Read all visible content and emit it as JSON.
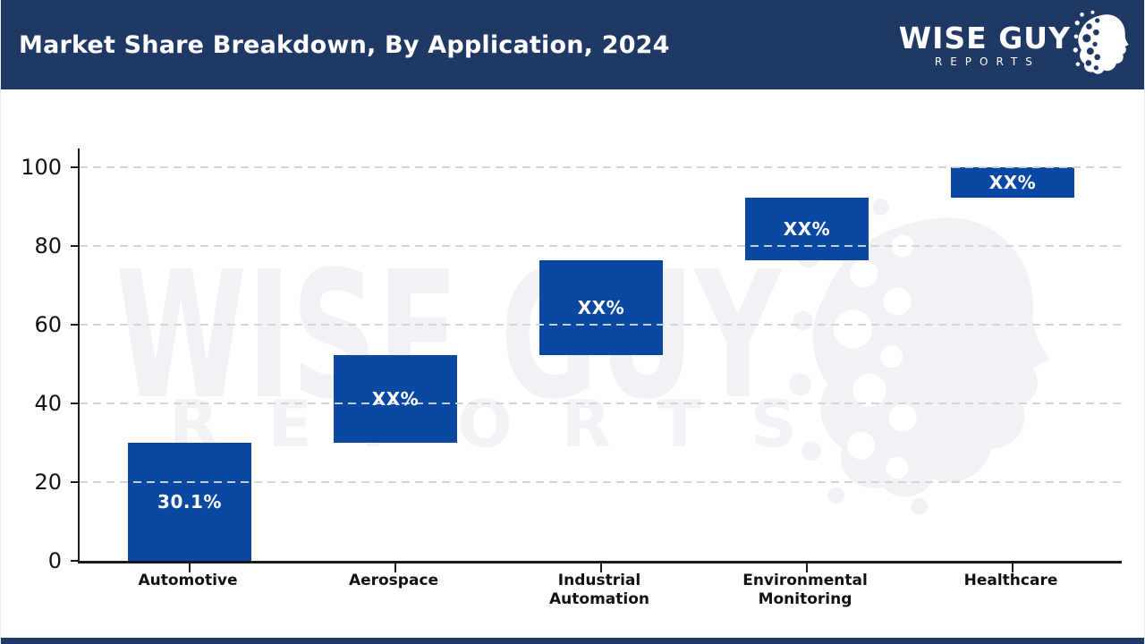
{
  "header": {
    "title": "Market Share Breakdown, By Application, 2024",
    "logo": {
      "primary": "WISE GUY",
      "secondary": "REPORTS"
    }
  },
  "watermark": {
    "primary": "WISE GUY",
    "secondary": "REPORTS"
  },
  "colors": {
    "header_bg": "#1F3864",
    "footer_bg": "#1F3864",
    "bar": "#0B48A1",
    "bar_label_text": "#FFFFFF",
    "axis": "#1A1A1A",
    "gridline": "#D9D9D9",
    "watermark": "#F1F2F5"
  },
  "chart_data": {
    "type": "bar",
    "subtype": "waterfall (floating cumulative bars)",
    "title": "Market Share Breakdown, By Application, 2024",
    "xlabel": "",
    "ylabel": "",
    "ylim": [
      0,
      105
    ],
    "y_ticks": [
      0,
      20,
      40,
      60,
      80,
      100
    ],
    "grid": "horizontal dashed, drawn over bars",
    "legend": "none",
    "categories": [
      "Automotive",
      "Aerospace",
      "Industrial Automation",
      "Environmental Monitoring",
      "Healthcare"
    ],
    "tick_labels": [
      "Automotive",
      "Aerospace",
      "Industrial\nAutomation",
      "Environmental\nMonitoring",
      "Healthcare"
    ],
    "segments": [
      {
        "category": "Automotive",
        "start": 0,
        "end": 30.1,
        "value_label": "30.1%"
      },
      {
        "category": "Aerospace",
        "start": 30.1,
        "end": 52.2,
        "value_label": "XX%"
      },
      {
        "category": "Industrial Automation",
        "start": 52.2,
        "end": 76.4,
        "value_label": "XX%"
      },
      {
        "category": "Environmental Monitoring",
        "start": 76.4,
        "end": 92.3,
        "value_label": "XX%"
      },
      {
        "category": "Healthcare",
        "start": 92.3,
        "end": 100,
        "value_label": "XX%"
      }
    ]
  }
}
